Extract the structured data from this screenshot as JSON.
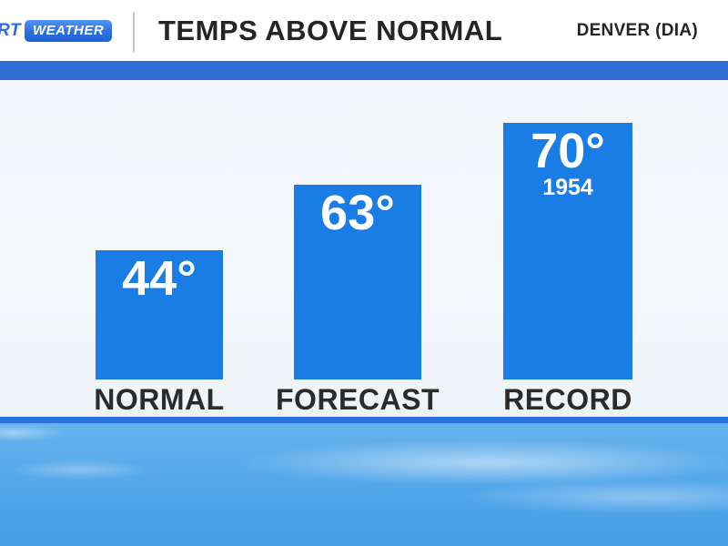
{
  "header": {
    "logo_prefix": "RT",
    "logo_badge": "WEATHER",
    "title": "TEMPS ABOVE NORMAL",
    "location": "DENVER (DIA)"
  },
  "chart_data": {
    "type": "bar",
    "title": "TEMPS ABOVE NORMAL",
    "subtitle": "DENVER (DIA)",
    "categories": [
      "NORMAL",
      "FORECAST",
      "RECORD"
    ],
    "values": [
      44,
      63,
      70
    ],
    "unit": "°F",
    "value_labels": [
      "44°",
      "63°",
      "70°"
    ],
    "record_year": "1954",
    "xlabel": "",
    "ylabel": "",
    "grid": false,
    "legend": "none",
    "bar_color": "#1a7de6"
  },
  "colors": {
    "accent_band": "#2f6cd4",
    "bottom_rule": "#2a70de",
    "bar": "#1a7de6",
    "panel_background": "#f3f6fa",
    "sky_top": "#66b2ec",
    "sky_bottom": "#469ee7",
    "title_text": "#242424",
    "logo_blue": "#2f6ce2"
  }
}
